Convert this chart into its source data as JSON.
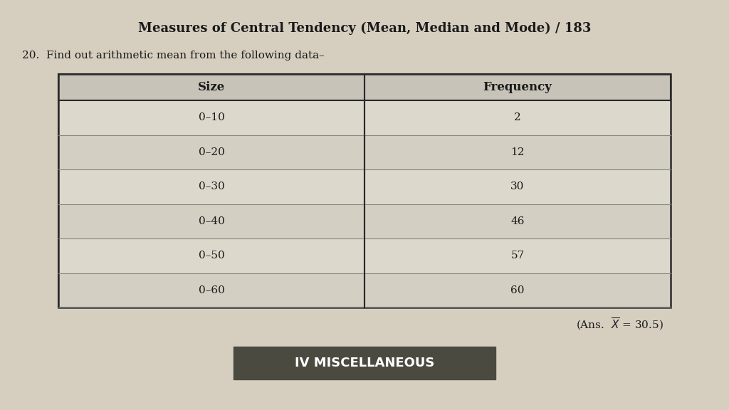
{
  "title": "Measures of Central Tendency (Mean, Median and Mode) / 183",
  "question": "20.  Find out arithmetic mean from the following data–",
  "col_headers": [
    "Size",
    "Frequency"
  ],
  "rows": [
    [
      "0–10",
      "2"
    ],
    [
      "0–20",
      "12"
    ],
    [
      "0–30",
      "30"
    ],
    [
      "0–40",
      "46"
    ],
    [
      "0–50",
      "57"
    ],
    [
      "0–60",
      "60"
    ]
  ],
  "answer": "(Ans.  $\\overline{X}$ = 30.5)",
  "footer": "IV MISCELLANEOUS",
  "bg_color": "#d6cfc0",
  "page_color": "#e8e3d8",
  "table_bg": "#d4cfc3",
  "header_bg": "#c8c3b8",
  "title_fontsize": 13,
  "question_fontsize": 11,
  "table_fontsize": 11,
  "footer_fontsize": 13
}
